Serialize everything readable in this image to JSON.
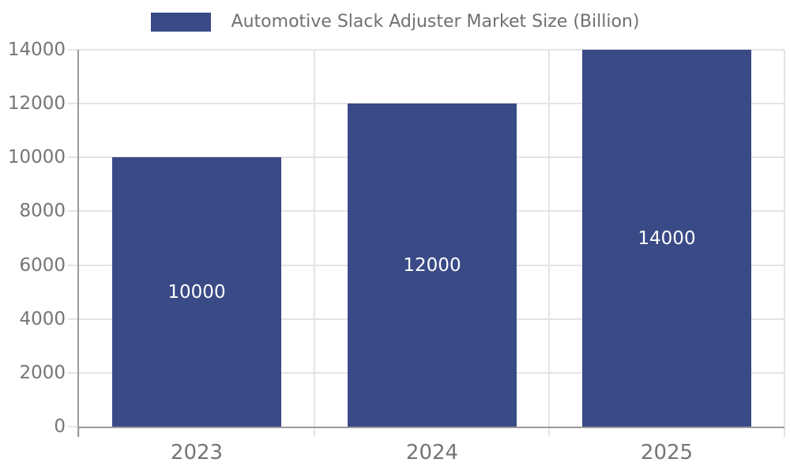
{
  "chart_data": {
    "type": "bar",
    "title": "Automotive Slack Adjuster Market Size (Billion)",
    "categories": [
      "2023",
      "2024",
      "2025"
    ],
    "values": [
      10000,
      12000,
      14000
    ],
    "data_labels": [
      "10000",
      "12000",
      "14000"
    ],
    "y_tick_labels": [
      "0",
      "2000",
      "4000",
      "6000",
      "8000",
      "10000",
      "12000",
      "14000"
    ],
    "xlabel": "",
    "ylabel": "",
    "ylim": [
      0,
      14000
    ],
    "ytick_interval": 2000,
    "grid": true,
    "legend_position": "top-center",
    "colors": {
      "bar": "#3A4A87",
      "bar_label_text": "#FFFFFF",
      "axis_text": "#757575",
      "legend_text": "#707070",
      "gridline": "#E4E4E4",
      "axis_line": "#9B9B9B",
      "background": "#FFFFFF"
    }
  }
}
